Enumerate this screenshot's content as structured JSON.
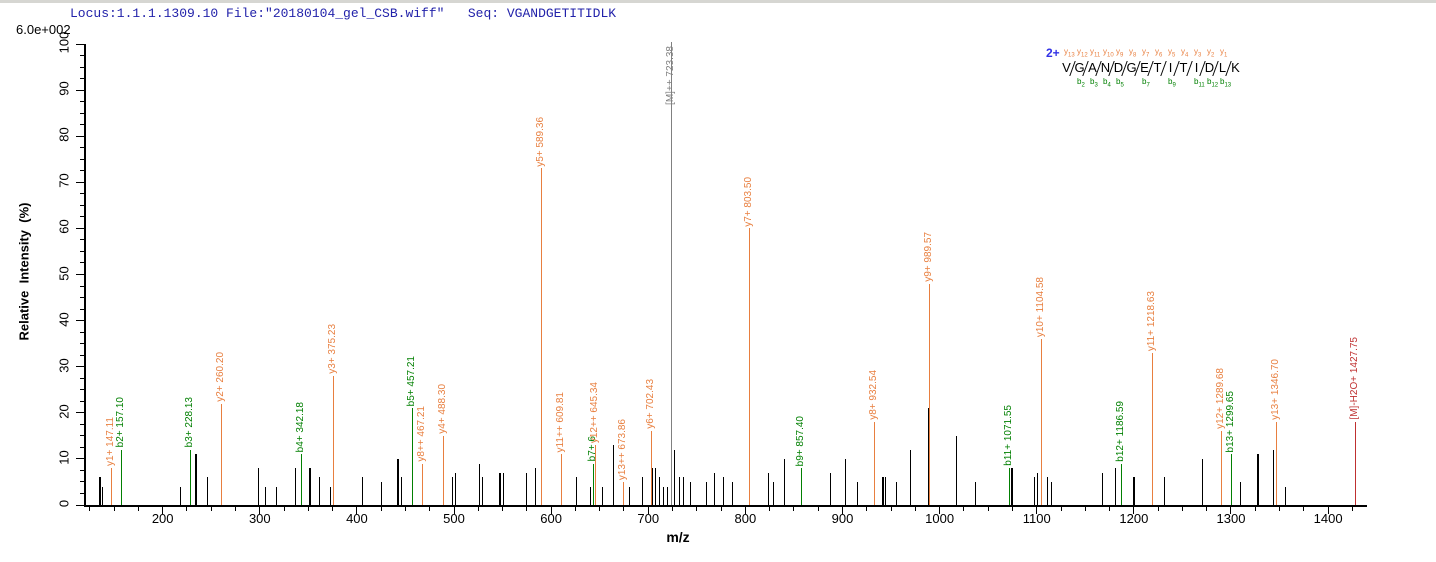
{
  "header": {
    "locus_text": "Locus:1.1.1.1309.10 File:\"20180104_gel_CSB.wiff\"   Seq: VGANDGETITIDLK",
    "intensity_scale": "6.0e+002"
  },
  "peptide_ladder": {
    "charge": "2+",
    "residues": [
      "V",
      "G",
      "A",
      "N",
      "D",
      "G",
      "E",
      "T",
      "I",
      "T",
      "I",
      "D",
      "L",
      "K"
    ],
    "gaps": [
      {
        "y": "y13",
        "b": ""
      },
      {
        "y": "y12",
        "b": "b2"
      },
      {
        "y": "y11",
        "b": "b3"
      },
      {
        "y": "y10",
        "b": "b4"
      },
      {
        "y": "y9",
        "b": "b5"
      },
      {
        "y": "y8",
        "b": ""
      },
      {
        "y": "y7",
        "b": "b7"
      },
      {
        "y": "y6",
        "b": ""
      },
      {
        "y": "y5",
        "b": "b9"
      },
      {
        "y": "y4",
        "b": ""
      },
      {
        "y": "y3",
        "b": "b11"
      },
      {
        "y": "y2",
        "b": "b12"
      },
      {
        "y": "y1",
        "b": "b13"
      }
    ]
  },
  "colors": {
    "y_ion": "#e87f3f",
    "b_ion": "#028002",
    "precursor": "#808080",
    "neutral_loss": "#bf3030",
    "peak_black": "#000000",
    "header_text": "#2222aa",
    "charge_text": "#3232e6"
  },
  "chart_data": {
    "type": "bar",
    "subtype": "ms2-fragmentation-stick-spectrum",
    "title": "",
    "xlabel": "m/z",
    "ylabel": "Relative  Intensity  (%)",
    "xlim": [
      120,
      1438
    ],
    "ylim": [
      0,
      100
    ],
    "x_first_major": 200,
    "x_last_major": 1400,
    "x_major_tick_step": 100,
    "x_minor_tick_step": 25,
    "y_major_tick_step": 10,
    "y_minor_tick_step": 2.5,
    "grid": false,
    "labeled_peaks": [
      {
        "mz": 147.11,
        "intensity": 8,
        "label": "y1+ 147.11",
        "ion": "y"
      },
      {
        "mz": 157.1,
        "intensity": 12,
        "label": "b2+ 157.10",
        "ion": "b"
      },
      {
        "mz": 228.13,
        "intensity": 12,
        "label": "b3+ 228.13",
        "ion": "b"
      },
      {
        "mz": 260.2,
        "intensity": 22,
        "label": "y2+ 260.20",
        "ion": "y"
      },
      {
        "mz": 342.18,
        "intensity": 11,
        "label": "b4+ 342.18",
        "ion": "b"
      },
      {
        "mz": 375.23,
        "intensity": 28,
        "label": "y3+ 375.23",
        "ion": "y"
      },
      {
        "mz": 457.21,
        "intensity": 21,
        "label": "b5+ 457.21",
        "ion": "b"
      },
      {
        "mz": 467.21,
        "intensity": 9,
        "label": "y8++ 467.21",
        "ion": "y"
      },
      {
        "mz": 488.3,
        "intensity": 15,
        "label": "y4+ 488.30",
        "ion": "y"
      },
      {
        "mz": 589.36,
        "intensity": 73,
        "label": "y5+ 589.36",
        "ion": "y"
      },
      {
        "mz": 609.81,
        "intensity": 11,
        "label": "y11++ 609.81",
        "ion": "y"
      },
      {
        "mz": 643.0,
        "intensity": 9,
        "label": "b7+ 6",
        "ion": "b"
      },
      {
        "mz": 645.34,
        "intensity": 13,
        "label": "y12++ 645.34",
        "ion": "y"
      },
      {
        "mz": 673.86,
        "intensity": 5,
        "label": "y13++ 673.86",
        "ion": "y"
      },
      {
        "mz": 702.43,
        "intensity": 16,
        "label": "y6+ 702.43",
        "ion": "y"
      },
      {
        "mz": 723.38,
        "intensity": 100,
        "label": "[M]++ 723.38",
        "ion": "precursor",
        "full_height": true
      },
      {
        "mz": 803.5,
        "intensity": 60,
        "label": "y7+ 803.50",
        "ion": "y"
      },
      {
        "mz": 857.4,
        "intensity": 8,
        "label": "b9+ 857.40",
        "ion": "b"
      },
      {
        "mz": 932.54,
        "intensity": 18,
        "label": "y8+ 932.54",
        "ion": "y"
      },
      {
        "mz": 989.57,
        "intensity": 48,
        "label": "y9+ 989.57",
        "ion": "y"
      },
      {
        "mz": 1071.55,
        "intensity": 8,
        "label": "b11+ 1071.55",
        "ion": "b"
      },
      {
        "mz": 1104.58,
        "intensity": 36,
        "label": "y10+ 1104.58",
        "ion": "y"
      },
      {
        "mz": 1186.59,
        "intensity": 9,
        "label": "b12+ 1186.59",
        "ion": "b"
      },
      {
        "mz": 1218.63,
        "intensity": 33,
        "label": "y11+ 1218.63",
        "ion": "y"
      },
      {
        "mz": 1289.68,
        "intensity": 16,
        "label": "y12+ 1289.68",
        "ion": "y"
      },
      {
        "mz": 1299.65,
        "intensity": 11,
        "label": "b13+ 1299.65",
        "ion": "b"
      },
      {
        "mz": 1346.7,
        "intensity": 18,
        "label": "y13+ 1346.70",
        "ion": "y"
      },
      {
        "mz": 1427.75,
        "intensity": 18,
        "label": "[M]-H2O+ 1427.75",
        "ion": "neutral_loss"
      }
    ],
    "unlabeled_peaks": [
      [
        134,
        6,
        1
      ],
      [
        137,
        4
      ],
      [
        218,
        4
      ],
      [
        233,
        11,
        1
      ],
      [
        246,
        6
      ],
      [
        298,
        8
      ],
      [
        305,
        4
      ],
      [
        317,
        4
      ],
      [
        336,
        8
      ],
      [
        351,
        8,
        1
      ],
      [
        361,
        6
      ],
      [
        372,
        4
      ],
      [
        405,
        6
      ],
      [
        425,
        5
      ],
      [
        441,
        10,
        1
      ],
      [
        445,
        6
      ],
      [
        498,
        6
      ],
      [
        501,
        7
      ],
      [
        526,
        9
      ],
      [
        529,
        6
      ],
      [
        546,
        7,
        1
      ],
      [
        550,
        7
      ],
      [
        574,
        7
      ],
      [
        583,
        8
      ],
      [
        626,
        6
      ],
      [
        640,
        4
      ],
      [
        652,
        4
      ],
      [
        664,
        13
      ],
      [
        680,
        4
      ],
      [
        694,
        6
      ],
      [
        703,
        8,
        1
      ],
      [
        707,
        8
      ],
      [
        711,
        6
      ],
      [
        715,
        4
      ],
      [
        719,
        4
      ],
      [
        726,
        12
      ],
      [
        732,
        6
      ],
      [
        736,
        6
      ],
      [
        743,
        5
      ],
      [
        759,
        5
      ],
      [
        768,
        7
      ],
      [
        777,
        6
      ],
      [
        786,
        5
      ],
      [
        823,
        7
      ],
      [
        828,
        5
      ],
      [
        840,
        10
      ],
      [
        887,
        7
      ],
      [
        903,
        10
      ],
      [
        915,
        5
      ],
      [
        941,
        6,
        1
      ],
      [
        944,
        6
      ],
      [
        955,
        5
      ],
      [
        970,
        12
      ],
      [
        988,
        21,
        1
      ],
      [
        1017,
        15
      ],
      [
        1036,
        5
      ],
      [
        1074,
        8,
        1
      ],
      [
        1097,
        6
      ],
      [
        1100,
        7
      ],
      [
        1111,
        6
      ],
      [
        1115,
        5
      ],
      [
        1167,
        7
      ],
      [
        1181,
        8
      ],
      [
        1199,
        6,
        1
      ],
      [
        1231,
        6
      ],
      [
        1270,
        10
      ],
      [
        1309,
        5
      ],
      [
        1327,
        11,
        1
      ],
      [
        1343,
        12
      ],
      [
        1356,
        4
      ]
    ]
  }
}
